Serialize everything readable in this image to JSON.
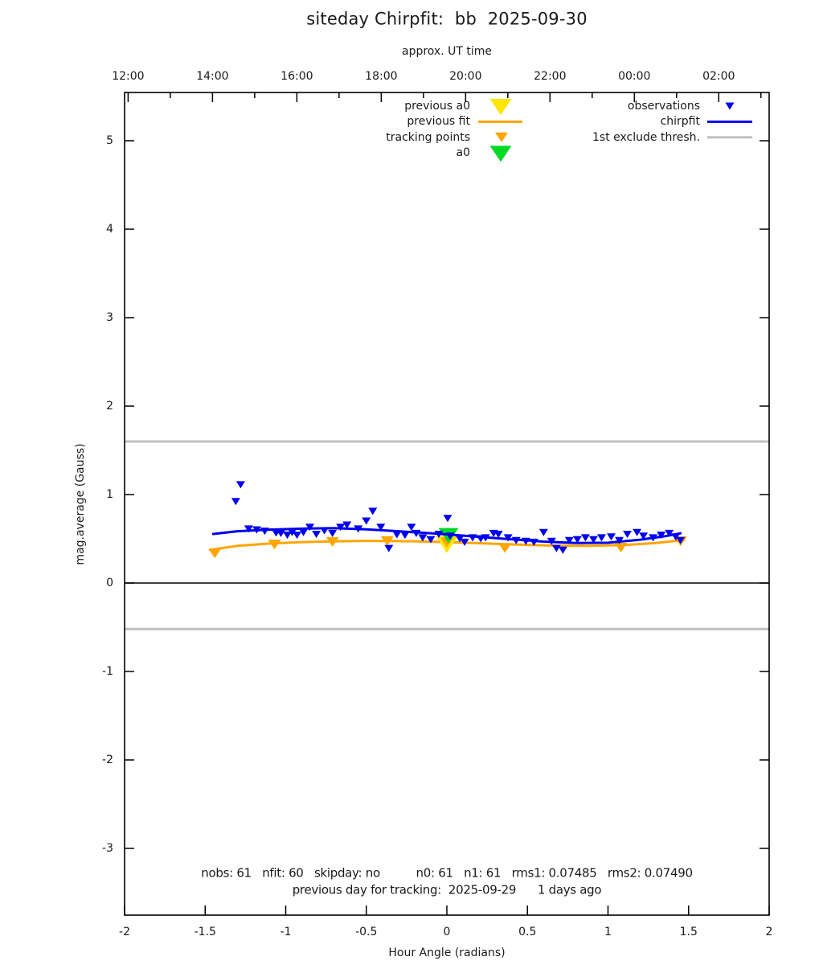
{
  "chart_data": {
    "type": "scatter",
    "title": "siteday Chirpfit:  bb  2025-09-30",
    "top_axis": {
      "label": "approx. UT time",
      "tick_labels": [
        "12:00",
        "14:00",
        "16:00",
        "18:00",
        "20:00",
        "22:00",
        "00:00",
        "02:00"
      ],
      "first_tick_ha": -1.978,
      "major_step_ha": 0.5236,
      "minor_step_ha": 0.2618
    },
    "x_axis": {
      "label": "Hour Angle (radians)",
      "ticks": [
        -2,
        -1.5,
        -1,
        -0.5,
        0,
        0.5,
        1,
        1.5,
        2
      ],
      "range": [
        -2,
        2
      ]
    },
    "y_axis": {
      "label": "mag.average (Gauss)",
      "ticks": [
        -3,
        -2,
        -1,
        0,
        1,
        2,
        3,
        4,
        5
      ],
      "range": [
        -3.755,
        5.545
      ]
    },
    "reference": {
      "zero_line": 0,
      "exclude_thresholds": [
        1.6,
        -0.52
      ],
      "threshold_color": "#c0c0c0",
      "zero_color": "#000000"
    },
    "legend": {
      "left": [
        {
          "label": "previous a0",
          "marker": "triangle-large",
          "color": "#ffe500"
        },
        {
          "label": "previous fit",
          "marker": "line",
          "color": "#ffa500"
        },
        {
          "label": "tracking points",
          "marker": "triangle-small",
          "color": "#ffa500"
        },
        {
          "label": "a0",
          "marker": "triangle-large",
          "color": "#00d926"
        }
      ],
      "right": [
        {
          "label": "observations",
          "marker": "triangle-tiny",
          "color": "#0000ee"
        },
        {
          "label": "chirpfit",
          "marker": "line",
          "color": "#0000ee"
        },
        {
          "label": "1st exclude thresh.",
          "marker": "line",
          "color": "#c0c0c0"
        }
      ]
    },
    "series": {
      "observations": {
        "label": "observations",
        "color": "#0000ee",
        "marker": "triangle-down",
        "points": [
          [
            -1.31,
            0.92
          ],
          [
            -1.28,
            1.11
          ],
          [
            -1.23,
            0.61
          ],
          [
            -1.18,
            0.6
          ],
          [
            -1.13,
            0.585
          ],
          [
            -1.06,
            0.565
          ],
          [
            -1.03,
            0.56
          ],
          [
            -0.99,
            0.54
          ],
          [
            -0.96,
            0.57
          ],
          [
            -0.93,
            0.54
          ],
          [
            -0.89,
            0.57
          ],
          [
            -0.85,
            0.63
          ],
          [
            -0.81,
            0.55
          ],
          [
            -0.76,
            0.59
          ],
          [
            -0.71,
            0.56
          ],
          [
            -0.66,
            0.63
          ],
          [
            -0.62,
            0.655
          ],
          [
            -0.55,
            0.61
          ],
          [
            -0.5,
            0.7
          ],
          [
            -0.46,
            0.81
          ],
          [
            -0.41,
            0.63
          ],
          [
            -0.36,
            0.39
          ],
          [
            -0.31,
            0.545
          ],
          [
            -0.26,
            0.54
          ],
          [
            -0.22,
            0.63
          ],
          [
            -0.19,
            0.56
          ],
          [
            -0.15,
            0.51
          ],
          [
            -0.1,
            0.49
          ],
          [
            -0.05,
            0.55
          ],
          [
            0.005,
            0.73
          ],
          [
            0.02,
            0.53
          ],
          [
            0.08,
            0.5
          ],
          [
            0.11,
            0.46
          ],
          [
            0.16,
            0.51
          ],
          [
            0.21,
            0.5
          ],
          [
            0.24,
            0.51
          ],
          [
            0.29,
            0.56
          ],
          [
            0.32,
            0.55
          ],
          [
            0.38,
            0.51
          ],
          [
            0.43,
            0.48
          ],
          [
            0.49,
            0.47
          ],
          [
            0.54,
            0.46
          ],
          [
            0.6,
            0.57
          ],
          [
            0.65,
            0.47
          ],
          [
            0.68,
            0.39
          ],
          [
            0.72,
            0.37
          ],
          [
            0.76,
            0.48
          ],
          [
            0.81,
            0.49
          ],
          [
            0.86,
            0.51
          ],
          [
            0.91,
            0.49
          ],
          [
            0.96,
            0.51
          ],
          [
            1.02,
            0.52
          ],
          [
            1.07,
            0.48
          ],
          [
            1.12,
            0.55
          ],
          [
            1.18,
            0.57
          ],
          [
            1.22,
            0.53
          ],
          [
            1.28,
            0.51
          ],
          [
            1.33,
            0.54
          ],
          [
            1.38,
            0.56
          ],
          [
            1.42,
            0.52
          ],
          [
            1.45,
            0.48
          ]
        ]
      },
      "chirpfit": {
        "label": "chirpfit",
        "color": "#0000ee",
        "points": [
          [
            -1.45,
            0.555
          ],
          [
            -1.3,
            0.585
          ],
          [
            -1.1,
            0.603
          ],
          [
            -0.9,
            0.615
          ],
          [
            -0.7,
            0.62
          ],
          [
            -0.5,
            0.607
          ],
          [
            -0.3,
            0.585
          ],
          [
            -0.1,
            0.562
          ],
          [
            0.0,
            0.55
          ],
          [
            0.2,
            0.522
          ],
          [
            0.4,
            0.494
          ],
          [
            0.6,
            0.468
          ],
          [
            0.8,
            0.452
          ],
          [
            1.0,
            0.456
          ],
          [
            1.2,
            0.49
          ],
          [
            1.35,
            0.528
          ],
          [
            1.45,
            0.562
          ]
        ]
      },
      "previous_fit": {
        "label": "previous fit",
        "color": "#ffa500",
        "points": [
          [
            -1.47,
            0.375
          ],
          [
            -1.3,
            0.42
          ],
          [
            -1.1,
            0.447
          ],
          [
            -0.9,
            0.462
          ],
          [
            -0.7,
            0.472
          ],
          [
            -0.5,
            0.476
          ],
          [
            -0.3,
            0.474
          ],
          [
            -0.1,
            0.468
          ],
          [
            0.1,
            0.457
          ],
          [
            0.3,
            0.443
          ],
          [
            0.5,
            0.431
          ],
          [
            0.7,
            0.422
          ],
          [
            0.9,
            0.421
          ],
          [
            1.1,
            0.43
          ],
          [
            1.3,
            0.452
          ],
          [
            1.47,
            0.487
          ]
        ]
      },
      "tracking_points": {
        "label": "tracking points",
        "color": "#ffa500",
        "marker": "triangle-down",
        "points": [
          [
            -1.44,
            0.335
          ],
          [
            -1.07,
            0.435
          ],
          [
            -0.71,
            0.465
          ],
          [
            -0.37,
            0.475
          ],
          [
            0.0,
            0.458
          ],
          [
            0.36,
            0.395
          ],
          [
            1.08,
            0.4
          ],
          [
            1.45,
            0.472
          ]
        ]
      },
      "a0": {
        "label": "a0",
        "color": "#00d926",
        "marker": "triangle-down-large",
        "point": [
          0.01,
          0.535
        ]
      },
      "previous_a0": {
        "label": "previous a0",
        "color": "#ffe500",
        "marker": "triangle-down-large",
        "point": [
          0.0,
          0.435
        ]
      }
    },
    "stats_line1": "nobs: 61   nfit: 60   skipday: no          n0: 61   n1: 61   rms1: 0.07485   rms2: 0.07490",
    "stats_line2": "previous day for tracking:  2025-09-29      1 days ago"
  }
}
